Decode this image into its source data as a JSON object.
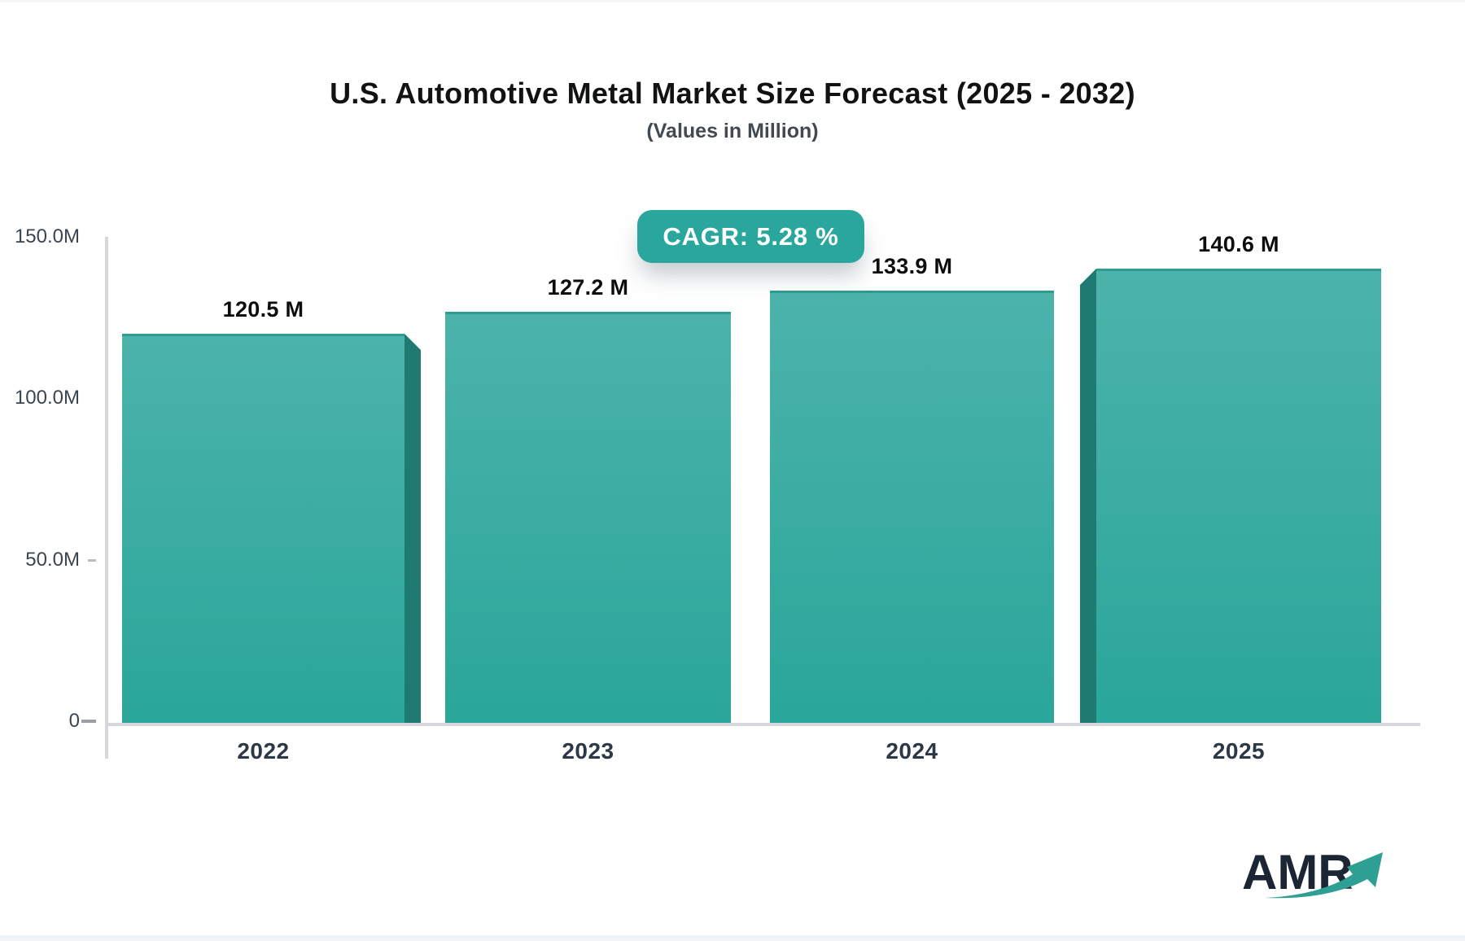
{
  "page": {
    "title": "U.S. Automotive Metal Market Size Forecast (2025 - 2032)",
    "subtitle": "(Values in Million)",
    "cagr_badge": "CAGR: 5.28 %",
    "logo_text": "AMR"
  },
  "colors": {
    "title": "#101214",
    "subtitle": "#42494f",
    "badge_bg": "#2aa79c",
    "badge_text": "#ffffff",
    "bar_top": "#4cb3ab",
    "bar_bottom": "#2aa69a",
    "bar_top_edge": "#2f9c92",
    "bar_side": "#1f7a71",
    "axis_line": "#d5d7da",
    "tick_minor": "#b9bec3",
    "tick_major": "#9aa0a5",
    "axis_label_y": "#3a4550",
    "axis_label_x": "#2c3845",
    "value_label": "#0c0d0e",
    "logo_navy": "#1b2533",
    "logo_teal": "#2d9f93"
  },
  "chart_data": {
    "type": "bar",
    "title": "U.S. Automotive Metal Market Size Forecast (2025 - 2032)",
    "subtitle": "(Values in Million)",
    "annotation": "CAGR: 5.28 %",
    "categories": [
      "2022",
      "2023",
      "2024",
      "2025"
    ],
    "values": [
      120.5,
      127.2,
      133.9,
      140.6
    ],
    "value_labels": [
      "120.5 M",
      "127.2 M",
      "133.9 M",
      "140.6 M"
    ],
    "y_ticks": [
      "150.0M",
      "100.0M",
      "50.0M",
      "0"
    ],
    "y_tick_values": [
      150,
      100,
      50,
      0
    ],
    "ylim": [
      0,
      150
    ],
    "xlabel": "",
    "ylabel": "",
    "grid": false,
    "legend": false
  }
}
